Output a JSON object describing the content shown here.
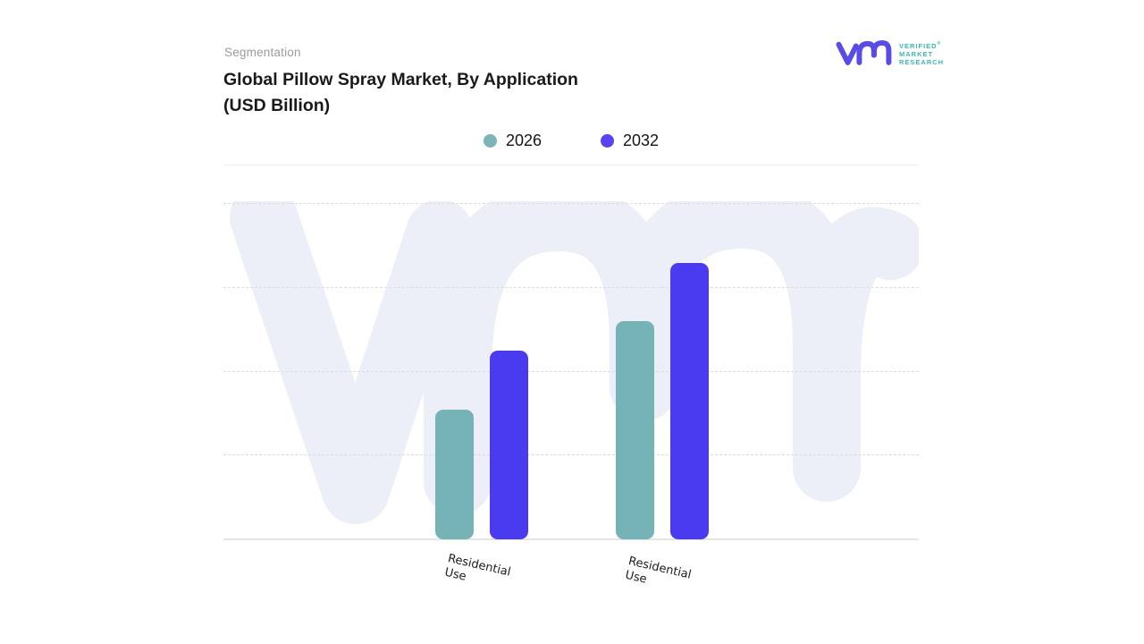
{
  "page": {
    "eyebrow": "Segmentation",
    "title_line1": "Global Pillow Spray Market, By Application",
    "title_line2": "(USD Billion)"
  },
  "brand": {
    "glyph": "vmr-logo",
    "name_line1": "VERIFIED",
    "name_line2": "MARKET",
    "name_line3": "RESEARCH",
    "registered_mark": "®",
    "glyph_color": "#584BE8",
    "text_color": "#3CB8B1"
  },
  "chart_data": {
    "type": "bar",
    "title": "Global Pillow Spray Market, By Application (USD Billion)",
    "categories": [
      "Residential Use",
      "Residential Use"
    ],
    "series": [
      {
        "name": "2026",
        "color": "#76B3B6",
        "legend_dot_color": "#7CB5B7",
        "values": [
          1.55,
          2.6
        ]
      },
      {
        "name": "2032",
        "color": "#4A3AF0",
        "legend_dot_color": "#5743F0",
        "values": [
          2.25,
          3.3
        ]
      }
    ],
    "ylim": [
      0,
      4
    ],
    "yaxis_tick_labels": "none shown",
    "grid": "horizontal dashed",
    "legend_position": "top-center",
    "xlabel": "",
    "ylabel": "",
    "watermark": "vmr-logo",
    "colors": {
      "gridline": "#DCDCDC",
      "baseline": "#E6E6E6",
      "watermark": "#ECEEF8",
      "separator": "#EDEDED"
    }
  }
}
